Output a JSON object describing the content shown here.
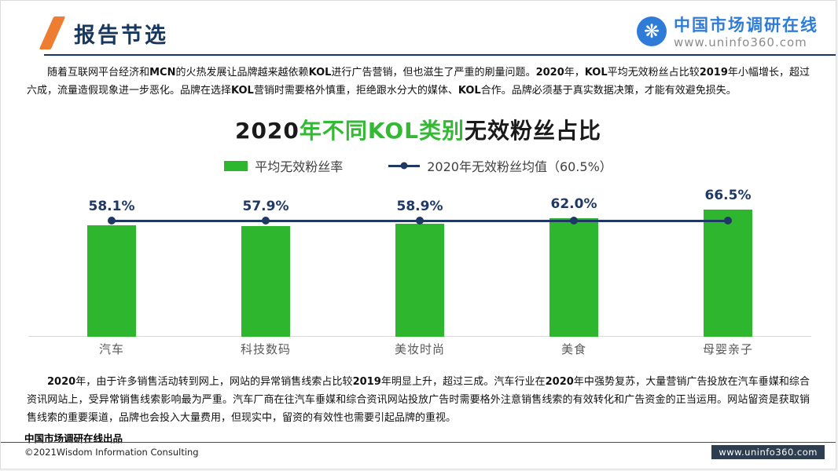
{
  "header": {
    "title": "报告节选",
    "logo": {
      "name": "中国市场调研在线",
      "url": "www.uninfo360.com",
      "icon_glyph": "❋"
    }
  },
  "intro_paragraph": [
    {
      "t": "随着互联网平台经济和"
    },
    {
      "t": "MCN",
      "b": true
    },
    {
      "t": "的火热发展让品牌越来越依赖"
    },
    {
      "t": "KOL",
      "b": true
    },
    {
      "t": "进行广告营销，但也滋生了严重的刷量问题。"
    },
    {
      "t": "2020",
      "b": true
    },
    {
      "t": "年，"
    },
    {
      "t": "KOL",
      "b": true
    },
    {
      "t": "平均无效粉丝占比较"
    },
    {
      "t": "2019",
      "b": true
    },
    {
      "t": "年小幅增长，超过六成，流量造假现象进一步恶化。品牌在选择"
    },
    {
      "t": "KOL",
      "b": true
    },
    {
      "t": "营销时需要格外慎重，拒绝跟水分大的媒体、"
    },
    {
      "t": "KOL",
      "b": true
    },
    {
      "t": "合作。品牌必须基于真实数据决策，才能有效避免损失。"
    }
  ],
  "chart_header": {
    "title_segments": [
      {
        "t": "2020",
        "c": "#1a1a1a"
      },
      {
        "t": "年不同KOL类别",
        "c": "#33B933"
      },
      {
        "t": "无效粉丝占比",
        "c": "#1a1a1a"
      }
    ]
  },
  "chart_data": {
    "type": "bar",
    "title": "2020年不同KOL类别无效粉丝占比",
    "categories": [
      "汽车",
      "科技数码",
      "美妆时尚",
      "美食",
      "母婴亲子"
    ],
    "values": [
      58.1,
      57.9,
      58.9,
      62.0,
      66.5
    ],
    "value_labels": [
      "58.1%",
      "57.9%",
      "58.9%",
      "62.0%",
      "66.5%"
    ],
    "mean_line": {
      "value": 60.5,
      "label": "2020年无效粉丝均值（60.5%）"
    },
    "legend": [
      "平均无效粉丝率",
      "2020年无效粉丝均值（60.5%）"
    ],
    "legend_position": "top",
    "xlabel": "",
    "ylabel": "",
    "ylim": [
      0,
      82
    ],
    "grid": false,
    "data_labels": true,
    "bar_color": "#2EB62E",
    "line_color": "#1F3864"
  },
  "body_paragraph": [
    {
      "t": "2020",
      "b": true
    },
    {
      "t": "年，由于许多销售活动转到网上，网站的异常销售线索占比较"
    },
    {
      "t": "2019",
      "b": true
    },
    {
      "t": "年明显上升，超过三成。汽车行业在"
    },
    {
      "t": "2020",
      "b": true
    },
    {
      "t": "年中强势复苏，大量营销广告投放在汽车垂媒和综合资讯网站上，受异常销售线索影响最为严重。汽车厂商在往汽车垂媒和综合资讯网站投放广告时需要格外注意销售线索的有效转化和广告资金的正当运用。网站留资是获取销售线索的重要渠道，品牌也会投入大量费用，但现实中，留资的有效性也需要引起品牌的重视。"
    }
  ],
  "footer": {
    "producer": "中国市场调研在线出品",
    "copyright": "©2021Wisdom Information Consulting",
    "badge": "www.uninfo360.com"
  },
  "colors": {
    "accent_orange": "#ED7D31",
    "header_navy": "#17375E",
    "logo_blue": "#2F7CD8",
    "bar_green": "#2EB62E",
    "line_navy": "#1F3864",
    "badge_bg": "#2C3E50"
  }
}
